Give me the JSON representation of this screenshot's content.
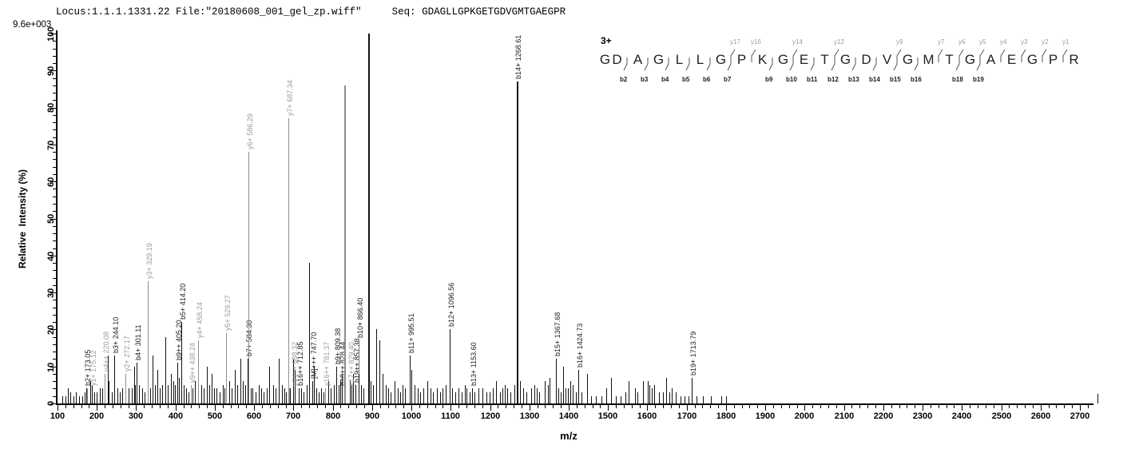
{
  "header": {
    "locus": "Locus:1.1.1.1331.22 File:\"20180608_001_gel_zp.wiff\"",
    "seq_label": "Seq:",
    "sequence": "GDAGLLGPKGETGDVGMTGAEGPR"
  },
  "y_axis": {
    "max_intensity_label": "9.6e+003",
    "title": "Relative  Intensity (%)",
    "min": 0,
    "max": 100,
    "major_step": 10,
    "minor_step": 2,
    "tick_labels": [
      "0",
      "10",
      "20",
      "30",
      "40",
      "50",
      "60",
      "70",
      "80",
      "90",
      "100"
    ]
  },
  "x_axis": {
    "title": "m/z",
    "min": 100,
    "max": 2730,
    "major_step": 100,
    "minor_step": 20,
    "last_labeled_tick": 2700
  },
  "peptide": {
    "charge": "3+",
    "residues": [
      "G",
      "D",
      "A",
      "G",
      "L",
      "L",
      "G",
      "P",
      "K",
      "G",
      "E",
      "T",
      "G",
      "D",
      "V",
      "G",
      "M",
      "T",
      "G",
      "A",
      "E",
      "G",
      "P",
      "R"
    ],
    "boundaries": [
      {
        "after": 2,
        "b": "b2"
      },
      {
        "after": 3,
        "b": "b3"
      },
      {
        "after": 4,
        "b": "b4"
      },
      {
        "after": 5,
        "b": "b5"
      },
      {
        "after": 6,
        "b": "b6"
      },
      {
        "after": 7,
        "b": "b7",
        "y": "y17"
      },
      {
        "after": 8,
        "y": "y16"
      },
      {
        "after": 9,
        "b": "b9"
      },
      {
        "after": 10,
        "b": "b10",
        "y": "y14"
      },
      {
        "after": 11,
        "b": "b11"
      },
      {
        "after": 12,
        "b": "b12",
        "y": "y12"
      },
      {
        "after": 13,
        "b": "b13"
      },
      {
        "after": 14,
        "b": "b14"
      },
      {
        "after": 15,
        "b": "b15",
        "y": "y9"
      },
      {
        "after": 16,
        "b": "b16"
      },
      {
        "after": 17,
        "y": "y7"
      },
      {
        "after": 18,
        "b": "b18",
        "y": "y6"
      },
      {
        "after": 19,
        "b": "b19",
        "y": "y5"
      },
      {
        "after": 20,
        "y": "y4"
      },
      {
        "after": 21,
        "y": "y3"
      },
      {
        "after": 22,
        "y": "y2"
      },
      {
        "after": 23,
        "y": "y1"
      }
    ]
  },
  "colors": {
    "b_ion_peak": "#111111",
    "y_ion_peak": "#8f8f8f",
    "b_label": "#1a1a1a",
    "y_label": "#9b9b9b",
    "axis": "#000000"
  },
  "chart_data": {
    "type": "bar",
    "subtype": "centroided MS/MS peptide fragmentation spectrum",
    "title": "Locus:1.1.1.1331.22 File:\"20180608_001_gel_zp.wiff\" Seq: GDAGLLGPKGETGDVGMTGAEGPR",
    "xlabel": "m/z",
    "ylabel": "Relative  Intensity (%)",
    "x_range": [
      100,
      2730
    ],
    "y_range": [
      0,
      100
    ],
    "grid": false,
    "base_peak_absolute_intensity": "9.6e+003",
    "precursor_charge": "3+",
    "labeled_peaks": [
      {
        "label": "b2+ 173.05",
        "ion": "b",
        "mz": 173.05,
        "intensity": 4
      },
      {
        "label": "y1+ 175.12",
        "ion": "y",
        "mz": 175.12,
        "intensity": 4,
        "dx": 6
      },
      {
        "label": "y4++ 220.08",
        "ion": "y",
        "mz": 220.08,
        "intensity": 8
      },
      {
        "label": "b3+ 244.10",
        "ion": "b",
        "mz": 244.1,
        "intensity": 13
      },
      {
        "label": "y2+ 272.17",
        "ion": "y",
        "mz": 272.17,
        "intensity": 8
      },
      {
        "label": "b4+ 301.11",
        "ion": "b",
        "mz": 301.11,
        "intensity": 11
      },
      {
        "label": "y3+ 329.19",
        "ion": "y",
        "mz": 329.19,
        "intensity": 33
      },
      {
        "label": "b9++ 405.20",
        "ion": "b",
        "mz": 405.2,
        "intensity": 11
      },
      {
        "label": "b5+ 414.20",
        "ion": "b",
        "mz": 414.2,
        "intensity": 22
      },
      {
        "label": "y9++ 438.24",
        "ion": "y",
        "mz": 438.24,
        "intensity": 5
      },
      {
        "label": "y4+ 458.24",
        "ion": "y",
        "mz": 458.24,
        "intensity": 17
      },
      {
        "label": "y5+ 529.27",
        "ion": "y",
        "mz": 529.27,
        "intensity": 19
      },
      {
        "label": "b7+ 584.30",
        "ion": "b",
        "mz": 584.3,
        "intensity": 12
      },
      {
        "label": "y6+ 586.29",
        "ion": "y",
        "mz": 586.29,
        "intensity": 68
      },
      {
        "label": "y7+ 687.34",
        "ion": "y",
        "mz": 687.34,
        "intensity": 77
      },
      {
        "label": "y14++ 688.32",
        "ion": "y",
        "mz": 688.32,
        "intensity": 4,
        "dx": 5
      },
      {
        "label": "b16++ 712.85",
        "ion": "b",
        "mz": 712.85,
        "intensity": 4
      },
      {
        "label": "[M]+++ 747.70",
        "ion": "M",
        "mz": 747.7,
        "intensity": 6
      },
      {
        "label": "y16++ 781.37",
        "ion": "y",
        "mz": 781.37,
        "intensity": 4
      },
      {
        "label": "b9+ 809.38",
        "ion": "b",
        "mz": 809.38,
        "intensity": 10
      },
      {
        "label": "b18++ 828.44",
        "ion": "b",
        "mz": 828.44,
        "intensity": 86,
        "label_bottom": 4,
        "dx": -4
      },
      {
        "label": "y17++ 829.40",
        "ion": "y",
        "mz": 829.4,
        "intensity": 86,
        "label_bottom": 4,
        "dx": 7
      },
      {
        "label": "b19++ 857.38",
        "ion": "b",
        "mz": 857.38,
        "intensity": 5
      },
      {
        "label": "b10+ 866.40",
        "ion": "b",
        "mz": 866.4,
        "intensity": 8,
        "label_bottom": 17
      },
      {
        "label": "b11+ 995.51",
        "ion": "b",
        "mz": 995.51,
        "intensity": 13
      },
      {
        "label": "b12+ 1096.56",
        "ion": "b",
        "mz": 1096.56,
        "intensity": 20
      },
      {
        "label": "b13+ 1153.60",
        "ion": "b",
        "mz": 1153.6,
        "intensity": 4
      },
      {
        "label": "b14+ 1268.61",
        "ion": "b",
        "mz": 1268.61,
        "intensity": 87
      },
      {
        "label": "b15+ 1367.68",
        "ion": "b",
        "mz": 1367.68,
        "intensity": 12
      },
      {
        "label": "b16+ 1424.73",
        "ion": "b",
        "mz": 1424.73,
        "intensity": 9
      },
      {
        "label": "b19+ 1713.79",
        "ion": "b",
        "mz": 1713.79,
        "intensity": 7
      }
    ],
    "unlabeled_peaks": [
      [
        113,
        2
      ],
      [
        121,
        2
      ],
      [
        127,
        4
      ],
      [
        133,
        3
      ],
      [
        140,
        2
      ],
      [
        147,
        3
      ],
      [
        155,
        2
      ],
      [
        163,
        2
      ],
      [
        169,
        3
      ],
      [
        183,
        6
      ],
      [
        187,
        5
      ],
      [
        193,
        3
      ],
      [
        199,
        3
      ],
      [
        207,
        4
      ],
      [
        213,
        4
      ],
      [
        228,
        13
      ],
      [
        231,
        6
      ],
      [
        238,
        3
      ],
      [
        245,
        9
      ],
      [
        252,
        4
      ],
      [
        259,
        3
      ],
      [
        265,
        4
      ],
      [
        280,
        4
      ],
      [
        288,
        4
      ],
      [
        294,
        10
      ],
      [
        297,
        5
      ],
      [
        308,
        5
      ],
      [
        315,
        4
      ],
      [
        322,
        3
      ],
      [
        336,
        4
      ],
      [
        341,
        13
      ],
      [
        348,
        5
      ],
      [
        353,
        9
      ],
      [
        360,
        4
      ],
      [
        367,
        5
      ],
      [
        374,
        18
      ],
      [
        381,
        5
      ],
      [
        388,
        8
      ],
      [
        394,
        6
      ],
      [
        399,
        5
      ],
      [
        409,
        7
      ],
      [
        420,
        5
      ],
      [
        428,
        4
      ],
      [
        433,
        3
      ],
      [
        444,
        4
      ],
      [
        450,
        6
      ],
      [
        465,
        5
      ],
      [
        472,
        4
      ],
      [
        479,
        10
      ],
      [
        486,
        5
      ],
      [
        493,
        8
      ],
      [
        498,
        4
      ],
      [
        505,
        4
      ],
      [
        512,
        3
      ],
      [
        520,
        5
      ],
      [
        525,
        4
      ],
      [
        536,
        6
      ],
      [
        543,
        4
      ],
      [
        551,
        9
      ],
      [
        558,
        5
      ],
      [
        565,
        12
      ],
      [
        572,
        6
      ],
      [
        578,
        5
      ],
      [
        592,
        4
      ],
      [
        596,
        4
      ],
      [
        603,
        3
      ],
      [
        611,
        5
      ],
      [
        617,
        4
      ],
      [
        625,
        3
      ],
      [
        632,
        4
      ],
      [
        638,
        10
      ],
      [
        648,
        5
      ],
      [
        655,
        4
      ],
      [
        663,
        12
      ],
      [
        670,
        5
      ],
      [
        676,
        4
      ],
      [
        681,
        3
      ],
      [
        692,
        4
      ],
      [
        700,
        12
      ],
      [
        703,
        9
      ],
      [
        719,
        4
      ],
      [
        726,
        3
      ],
      [
        733,
        5
      ],
      [
        740,
        38
      ],
      [
        752,
        10
      ],
      [
        758,
        4
      ],
      [
        765,
        3
      ],
      [
        771,
        4
      ],
      [
        776,
        3
      ],
      [
        788,
        6
      ],
      [
        795,
        4
      ],
      [
        803,
        5
      ],
      [
        815,
        5
      ],
      [
        820,
        6
      ],
      [
        824,
        8
      ],
      [
        843,
        6
      ],
      [
        848,
        5
      ],
      [
        852,
        8
      ],
      [
        872,
        5
      ],
      [
        878,
        4
      ],
      [
        890,
        100
      ],
      [
        896,
        6
      ],
      [
        903,
        5
      ],
      [
        910,
        20
      ],
      [
        919,
        17
      ],
      [
        926,
        8
      ],
      [
        934,
        5
      ],
      [
        940,
        4
      ],
      [
        948,
        3
      ],
      [
        958,
        6
      ],
      [
        966,
        4
      ],
      [
        972,
        3
      ],
      [
        977,
        5
      ],
      [
        984,
        4
      ],
      [
        999,
        9
      ],
      [
        1007,
        5
      ],
      [
        1016,
        4
      ],
      [
        1022,
        3
      ],
      [
        1030,
        4
      ],
      [
        1040,
        6
      ],
      [
        1048,
        4
      ],
      [
        1055,
        3
      ],
      [
        1064,
        4
      ],
      [
        1072,
        3
      ],
      [
        1080,
        4
      ],
      [
        1088,
        5
      ],
      [
        1104,
        4
      ],
      [
        1112,
        3
      ],
      [
        1119,
        4
      ],
      [
        1128,
        3
      ],
      [
        1136,
        5
      ],
      [
        1141,
        4
      ],
      [
        1148,
        3
      ],
      [
        1160,
        3
      ],
      [
        1170,
        4
      ],
      [
        1180,
        4
      ],
      [
        1190,
        3
      ],
      [
        1199,
        3
      ],
      [
        1208,
        4
      ],
      [
        1216,
        6
      ],
      [
        1225,
        3
      ],
      [
        1232,
        4
      ],
      [
        1238,
        5
      ],
      [
        1244,
        4
      ],
      [
        1252,
        3
      ],
      [
        1262,
        5
      ],
      [
        1276,
        6
      ],
      [
        1284,
        4
      ],
      [
        1292,
        3
      ],
      [
        1305,
        4
      ],
      [
        1312,
        5
      ],
      [
        1318,
        4
      ],
      [
        1324,
        3
      ],
      [
        1340,
        6
      ],
      [
        1347,
        5
      ],
      [
        1352,
        7
      ],
      [
        1374,
        4
      ],
      [
        1379,
        3
      ],
      [
        1385,
        10
      ],
      [
        1391,
        4
      ],
      [
        1397,
        4
      ],
      [
        1404,
        6
      ],
      [
        1410,
        5
      ],
      [
        1418,
        3
      ],
      [
        1432,
        3
      ],
      [
        1447,
        8
      ],
      [
        1457,
        2
      ],
      [
        1470,
        2
      ],
      [
        1483,
        2
      ],
      [
        1495,
        4
      ],
      [
        1508,
        7
      ],
      [
        1520,
        2
      ],
      [
        1532,
        2
      ],
      [
        1545,
        3
      ],
      [
        1553,
        6
      ],
      [
        1568,
        4
      ],
      [
        1575,
        3
      ],
      [
        1588,
        6
      ],
      [
        1601,
        6
      ],
      [
        1605,
        5
      ],
      [
        1611,
        4
      ],
      [
        1618,
        5
      ],
      [
        1630,
        3
      ],
      [
        1640,
        3
      ],
      [
        1648,
        7
      ],
      [
        1655,
        3
      ],
      [
        1663,
        4
      ],
      [
        1672,
        3
      ],
      [
        1684,
        2
      ],
      [
        1695,
        2
      ],
      [
        1705,
        2
      ],
      [
        1725,
        2
      ],
      [
        1742,
        2
      ],
      [
        1762,
        2
      ],
      [
        1788,
        2
      ],
      [
        1800,
        2
      ],
      [
        2745,
        2.5
      ]
    ]
  }
}
